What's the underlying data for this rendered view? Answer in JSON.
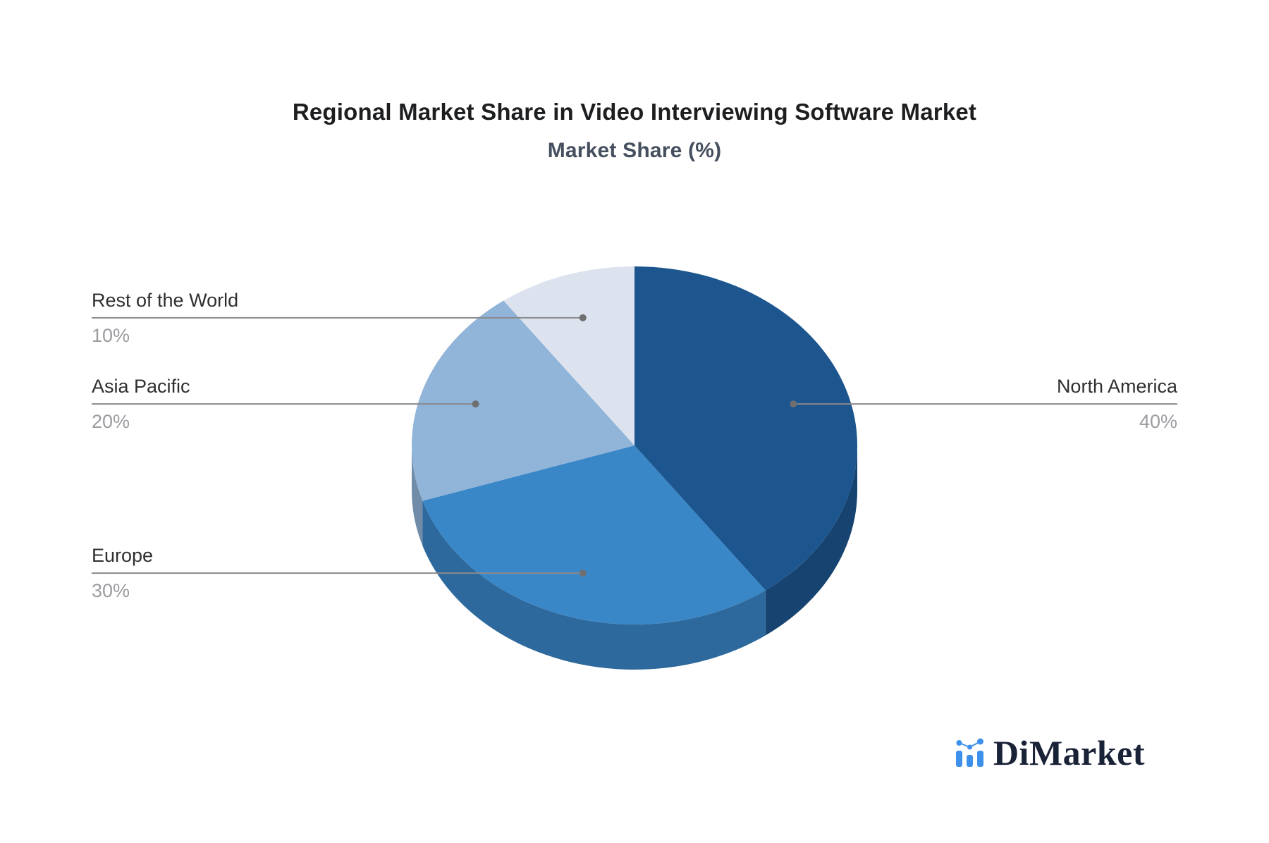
{
  "chart_data": {
    "type": "pie",
    "style": "3d",
    "title": "Regional Market Share in Video Interviewing Software Market",
    "subtitle": "Market Share (%)",
    "unit": "%",
    "start_angle_deg": 90,
    "direction": "clockwise",
    "slices": [
      {
        "label": "North America",
        "value": 40,
        "display": "40%",
        "color": "#1d568f"
      },
      {
        "label": "Europe",
        "value": 30,
        "display": "30%",
        "color": "#3a87c8"
      },
      {
        "label": "Asia Pacific",
        "value": 20,
        "display": "20%",
        "color": "#91b4d9"
      },
      {
        "label": "Rest of the World",
        "value": 10,
        "display": "10%",
        "color": "#dce3ef"
      }
    ],
    "label_color": "#2f2f31",
    "pct_color": "#9b9ca0",
    "leader_line_color": "#8a8a8a",
    "leader_dot_color": "#6f6f6f",
    "legend_position": "none"
  },
  "logo": {
    "text": "DiMarket",
    "icon": "bar-line-chart-icon",
    "icon_color": "#3d91ea",
    "text_color": "#1a2238"
  }
}
